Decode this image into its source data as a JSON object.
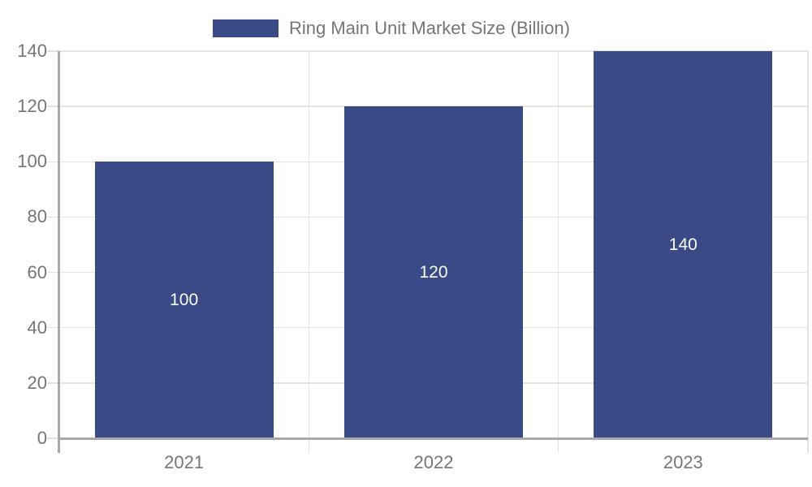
{
  "chart_data": {
    "type": "bar",
    "title": "Ring Main Unit Market Size (Billion)",
    "legend_entries": [
      "Ring Main Unit Market Size (Billion)"
    ],
    "legend_position": "top",
    "categories": [
      "2021",
      "2022",
      "2023"
    ],
    "series": [
      {
        "name": "Ring Main Unit Market Size (Billion)",
        "values": [
          100,
          120,
          140
        ]
      }
    ],
    "bar_value_labels": [
      "100",
      "120",
      "140"
    ],
    "xlabel": "",
    "ylabel": "",
    "ylim": [
      0,
      140
    ],
    "ytick_step": 20,
    "ytick_labels": [
      "0",
      "20",
      "40",
      "60",
      "80",
      "100",
      "120",
      "140"
    ],
    "grid": true,
    "colors": {
      "bar": "#3A4A87",
      "grid": "#E4E4E4",
      "axis": "#A9A9A9",
      "tick": "#E0E0E0",
      "text": "#757575",
      "bar_label_text": "#FAFAFA",
      "background": "#FFFFFF"
    }
  }
}
